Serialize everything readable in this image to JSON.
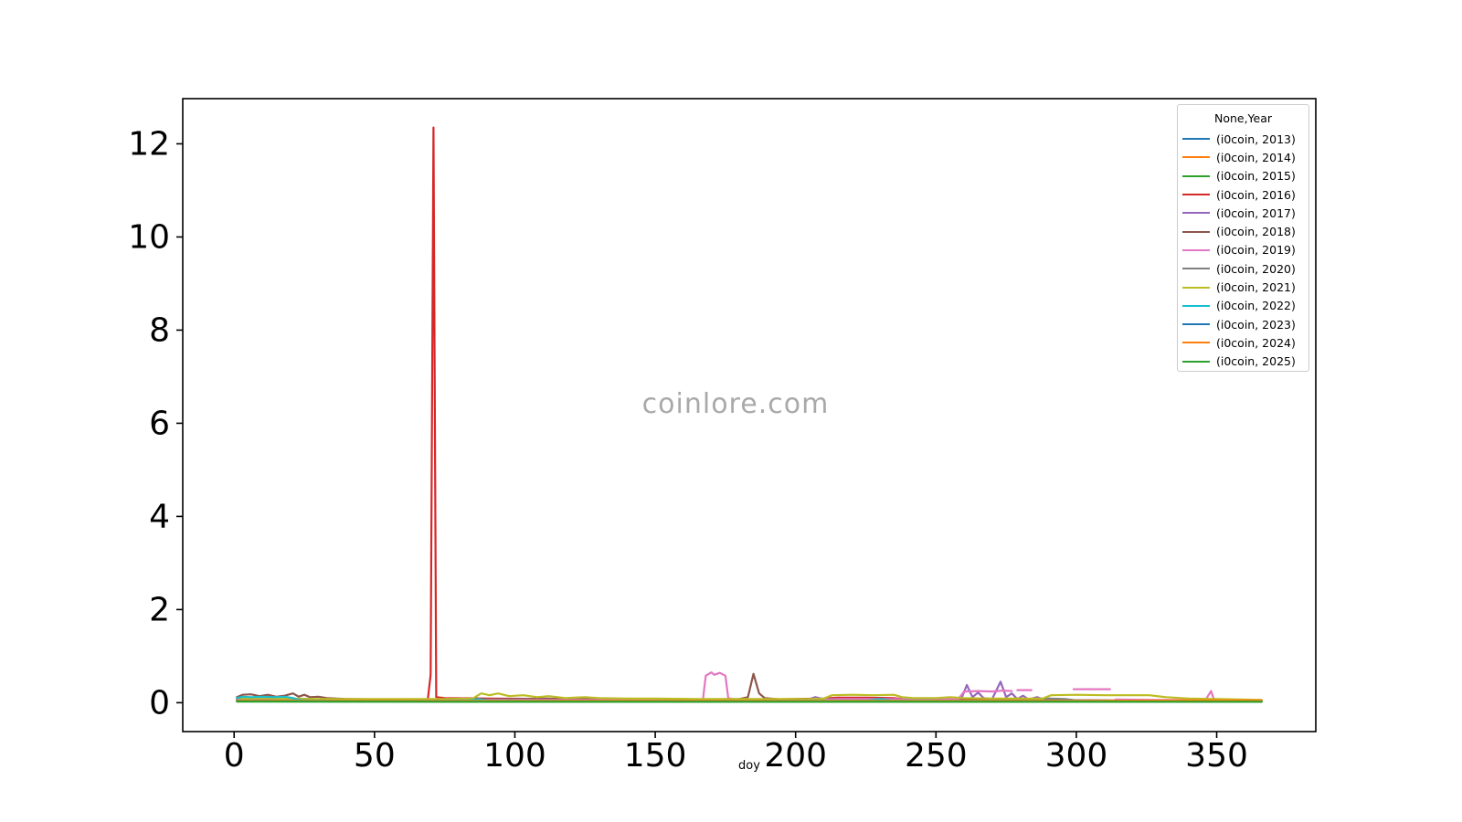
{
  "figure": {
    "watermark": "coinlore.com",
    "watermark_color": "#a9a9a9",
    "background": "#ffffff"
  },
  "chart_data": {
    "type": "line",
    "title": "",
    "xlabel": "doy",
    "ylabel": "",
    "grid": false,
    "legend_title": "None,Year",
    "legend_position": "upper right",
    "xlim": [
      -18.3,
      385.3
    ],
    "ylim": [
      -0.62,
      12.97
    ],
    "xticks": [
      0,
      50,
      100,
      150,
      200,
      250,
      300,
      350
    ],
    "yticks": [
      0,
      2,
      4,
      6,
      8,
      10,
      12
    ],
    "axis_color": "#000000",
    "peak_annotation": {
      "series": "(i0coin, 2016)",
      "x": 71,
      "y": 12.35
    },
    "series": [
      {
        "name": "(i0coin, 2013)",
        "year": 2013,
        "color": "#1f77b4",
        "points": [
          [
            1,
            0.09
          ],
          [
            4,
            0.11
          ],
          [
            8,
            0.09
          ],
          [
            12,
            0.11
          ],
          [
            16,
            0.09
          ],
          [
            20,
            0.1
          ],
          [
            24,
            0.07
          ],
          [
            30,
            0.05
          ],
          [
            60,
            0.04
          ],
          [
            120,
            0.04
          ],
          [
            180,
            0.04
          ],
          [
            240,
            0.04
          ],
          [
            300,
            0.04
          ],
          [
            366,
            0.04
          ]
        ]
      },
      {
        "name": "(i0coin, 2014)",
        "year": 2014,
        "color": "#ff7f0e",
        "points": [
          [
            1,
            0.05
          ],
          [
            30,
            0.04
          ],
          [
            90,
            0.03
          ],
          [
            150,
            0.03
          ],
          [
            210,
            0.03
          ],
          [
            270,
            0.03
          ],
          [
            330,
            0.03
          ],
          [
            366,
            0.03
          ]
        ]
      },
      {
        "name": "(i0coin, 2015)",
        "year": 2015,
        "color": "#2ca02c",
        "points": [
          [
            1,
            0.03
          ],
          [
            100,
            0.025
          ],
          [
            200,
            0.025
          ],
          [
            300,
            0.025
          ],
          [
            366,
            0.025
          ]
        ]
      },
      {
        "name": "(i0coin, 2016)",
        "year": 2016,
        "color": "#d62728",
        "points": [
          [
            1,
            0.07
          ],
          [
            20,
            0.06
          ],
          [
            40,
            0.06
          ],
          [
            60,
            0.06
          ],
          [
            69,
            0.07
          ],
          [
            70,
            0.6
          ],
          [
            71,
            12.35
          ],
          [
            72,
            0.12
          ],
          [
            75,
            0.1
          ],
          [
            90,
            0.09
          ],
          [
            120,
            0.08
          ],
          [
            150,
            0.07
          ],
          [
            180,
            0.06
          ],
          [
            210,
            0.09
          ],
          [
            215,
            0.11
          ],
          [
            225,
            0.11
          ],
          [
            235,
            0.1
          ],
          [
            240,
            0.07
          ],
          [
            270,
            0.06
          ],
          [
            290,
            0.05
          ],
          [
            305,
            0.05
          ],
          [
            320,
            0.04
          ],
          [
            340,
            0.04
          ],
          [
            366,
            0.04
          ]
        ]
      },
      {
        "name": "(i0coin, 2017)",
        "year": 2017,
        "color": "#9467bd",
        "points": [
          [
            1,
            0.06
          ],
          [
            50,
            0.05
          ],
          [
            100,
            0.05
          ],
          [
            150,
            0.05
          ],
          [
            200,
            0.05
          ],
          [
            205,
            0.08
          ],
          [
            207,
            0.12
          ],
          [
            210,
            0.08
          ],
          [
            215,
            0.05
          ],
          [
            255,
            0.05
          ],
          [
            259,
            0.08
          ],
          [
            261,
            0.38
          ],
          [
            263,
            0.12
          ],
          [
            265,
            0.22
          ],
          [
            267,
            0.1
          ],
          [
            270,
            0.08
          ],
          [
            273,
            0.45
          ],
          [
            275,
            0.12
          ],
          [
            277,
            0.2
          ],
          [
            279,
            0.08
          ],
          [
            281,
            0.15
          ],
          [
            283,
            0.07
          ],
          [
            286,
            0.12
          ],
          [
            289,
            0.06
          ],
          [
            300,
            0.05
          ],
          [
            330,
            0.04
          ],
          [
            366,
            0.04
          ]
        ]
      },
      {
        "name": "(i0coin, 2018)",
        "year": 2018,
        "color": "#8c564b",
        "points": [
          [
            1,
            0.12
          ],
          [
            3,
            0.17
          ],
          [
            6,
            0.18
          ],
          [
            9,
            0.14
          ],
          [
            12,
            0.17
          ],
          [
            15,
            0.13
          ],
          [
            18,
            0.15
          ],
          [
            21,
            0.2
          ],
          [
            23,
            0.13
          ],
          [
            25,
            0.17
          ],
          [
            27,
            0.12
          ],
          [
            30,
            0.13
          ],
          [
            33,
            0.1
          ],
          [
            40,
            0.08
          ],
          [
            55,
            0.07
          ],
          [
            70,
            0.07
          ],
          [
            85,
            0.07
          ],
          [
            100,
            0.08
          ],
          [
            110,
            0.09
          ],
          [
            120,
            0.08
          ],
          [
            135,
            0.08
          ],
          [
            150,
            0.07
          ],
          [
            165,
            0.07
          ],
          [
            180,
            0.08
          ],
          [
            183,
            0.12
          ],
          [
            185,
            0.62
          ],
          [
            187,
            0.2
          ],
          [
            189,
            0.1
          ],
          [
            195,
            0.07
          ],
          [
            210,
            0.06
          ],
          [
            240,
            0.06
          ],
          [
            270,
            0.05
          ],
          [
            300,
            0.05
          ],
          [
            330,
            0.05
          ],
          [
            366,
            0.05
          ]
        ]
      },
      {
        "name": "(i0coin, 2019)",
        "year": 2019,
        "color": "#e377c2",
        "points": [
          [
            1,
            0.07
          ],
          [
            40,
            0.06
          ],
          [
            80,
            0.06
          ],
          [
            120,
            0.06
          ],
          [
            160,
            0.06
          ],
          [
            167,
            0.07
          ],
          [
            168,
            0.58
          ],
          [
            170,
            0.65
          ],
          [
            171,
            0.6
          ],
          [
            173,
            0.64
          ],
          [
            175,
            0.58
          ],
          [
            176,
            0.1
          ],
          [
            178,
            0.07
          ],
          [
            190,
            0.06
          ],
          [
            210,
            0.07
          ],
          [
            215,
            0.08
          ],
          [
            230,
            0.08
          ],
          [
            250,
            0.07
          ],
          [
            258,
            0.08
          ],
          [
            260,
            0.24
          ],
          [
            265,
            0.25
          ],
          [
            270,
            0.24
          ],
          [
            274,
            0.26
          ],
          [
            277,
            0.25
          ],
          [
            278,
            null
          ],
          [
            279,
            0.27
          ],
          [
            284,
            0.27
          ],
          [
            285,
            null
          ],
          [
            299,
            0.29
          ],
          [
            312,
            0.29
          ],
          [
            313,
            null
          ],
          [
            314,
            0.07
          ],
          [
            330,
            0.06
          ],
          [
            346,
            0.06
          ],
          [
            348,
            0.25
          ],
          [
            349,
            0.07
          ],
          [
            356,
            0.05
          ],
          [
            366,
            0.05
          ]
        ]
      },
      {
        "name": "(i0coin, 2020)",
        "year": 2020,
        "color": "#7f7f7f",
        "points": [
          [
            1,
            0.05
          ],
          [
            60,
            0.05
          ],
          [
            120,
            0.04
          ],
          [
            180,
            0.04
          ],
          [
            240,
            0.04
          ],
          [
            286,
            0.05
          ],
          [
            290,
            0.09
          ],
          [
            296,
            0.08
          ],
          [
            300,
            0.05
          ],
          [
            330,
            0.04
          ],
          [
            366,
            0.04
          ]
        ]
      },
      {
        "name": "(i0coin, 2021)",
        "year": 2021,
        "color": "#bcbd22",
        "points": [
          [
            1,
            0.1
          ],
          [
            5,
            0.09
          ],
          [
            10,
            0.1
          ],
          [
            15,
            0.09
          ],
          [
            20,
            0.09
          ],
          [
            30,
            0.08
          ],
          [
            45,
            0.08
          ],
          [
            60,
            0.08
          ],
          [
            75,
            0.08
          ],
          [
            85,
            0.09
          ],
          [
            88,
            0.2
          ],
          [
            91,
            0.16
          ],
          [
            94,
            0.2
          ],
          [
            98,
            0.14
          ],
          [
            103,
            0.16
          ],
          [
            108,
            0.12
          ],
          [
            112,
            0.14
          ],
          [
            118,
            0.1
          ],
          [
            125,
            0.12
          ],
          [
            130,
            0.1
          ],
          [
            140,
            0.09
          ],
          [
            150,
            0.09
          ],
          [
            165,
            0.08
          ],
          [
            180,
            0.08
          ],
          [
            195,
            0.08
          ],
          [
            205,
            0.08
          ],
          [
            210,
            0.09
          ],
          [
            213,
            0.16
          ],
          [
            220,
            0.17
          ],
          [
            228,
            0.16
          ],
          [
            235,
            0.17
          ],
          [
            238,
            0.12
          ],
          [
            242,
            0.1
          ],
          [
            250,
            0.1
          ],
          [
            255,
            0.12
          ],
          [
            260,
            0.1
          ],
          [
            270,
            0.09
          ],
          [
            280,
            0.09
          ],
          [
            288,
            0.09
          ],
          [
            291,
            0.16
          ],
          [
            300,
            0.17
          ],
          [
            310,
            0.16
          ],
          [
            320,
            0.16
          ],
          [
            326,
            0.16
          ],
          [
            332,
            0.12
          ],
          [
            340,
            0.09
          ],
          [
            350,
            0.08
          ],
          [
            358,
            0.07
          ],
          [
            366,
            0.06
          ]
        ]
      },
      {
        "name": "(i0coin, 2022)",
        "year": 2022,
        "color": "#17becf",
        "points": [
          [
            1,
            0.1
          ],
          [
            3,
            0.13
          ],
          [
            6,
            0.12
          ],
          [
            10,
            0.13
          ],
          [
            14,
            0.12
          ],
          [
            18,
            0.13
          ],
          [
            21,
            0.1
          ],
          [
            23,
            0.06
          ],
          [
            26,
            0.05
          ],
          [
            40,
            0.04
          ],
          [
            60,
            0.04
          ],
          [
            84,
            0.05
          ],
          [
            87,
            0.08
          ],
          [
            90,
            0.05
          ],
          [
            120,
            0.04
          ],
          [
            180,
            0.04
          ],
          [
            226,
            0.05
          ],
          [
            230,
            0.08
          ],
          [
            234,
            0.05
          ],
          [
            270,
            0.04
          ],
          [
            330,
            0.04
          ],
          [
            366,
            0.04
          ]
        ]
      },
      {
        "name": "(i0coin, 2023)",
        "year": 2023,
        "color": "#1f77b4",
        "points": [
          [
            1,
            0.04
          ],
          [
            100,
            0.03
          ],
          [
            200,
            0.03
          ],
          [
            300,
            0.03
          ],
          [
            366,
            0.03
          ]
        ]
      },
      {
        "name": "(i0coin, 2024)",
        "year": 2024,
        "color": "#ff7f0e",
        "points": [
          [
            1,
            0.04
          ],
          [
            60,
            0.04
          ],
          [
            120,
            0.04
          ],
          [
            180,
            0.04
          ],
          [
            240,
            0.04
          ],
          [
            300,
            0.04
          ],
          [
            345,
            0.05
          ],
          [
            366,
            0.05
          ]
        ]
      },
      {
        "name": "(i0coin, 2025)",
        "year": 2025,
        "color": "#2ca02c",
        "points": [
          [
            1,
            0.025
          ],
          [
            100,
            0.02
          ],
          [
            200,
            0.02
          ],
          [
            300,
            0.02
          ],
          [
            366,
            0.02
          ]
        ]
      }
    ]
  }
}
